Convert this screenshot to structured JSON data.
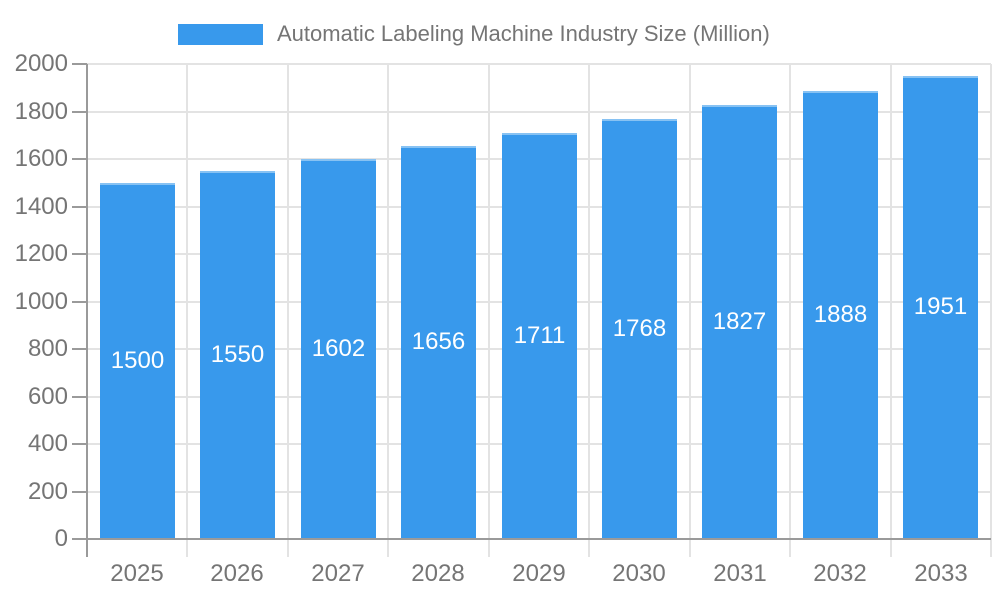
{
  "legend": {
    "label": "Automatic Labeling Machine Industry Size (Million)"
  },
  "chart_data": {
    "type": "bar",
    "title": "Automatic Labeling Machine Industry Size (Million)",
    "categories": [
      "2025",
      "2026",
      "2027",
      "2028",
      "2029",
      "2030",
      "2031",
      "2032",
      "2033"
    ],
    "values": [
      1500,
      1550,
      1602,
      1656,
      1711,
      1768,
      1827,
      1888,
      1951
    ],
    "value_labels_shown": true,
    "value_label_position": "inside-middle",
    "xlabel": "",
    "ylabel": "",
    "ylim": [
      0,
      2000
    ],
    "ytick_interval": 200,
    "yticks": [
      0,
      200,
      400,
      600,
      800,
      1000,
      1200,
      1400,
      1600,
      1800,
      2000
    ],
    "grid": true,
    "legend_position": "top",
    "colors": {
      "bar": "#3899EC",
      "grid": "#E3E3E3",
      "axis": "#9A9A9A",
      "text": "#757575",
      "value_label": "#FFFFFF",
      "background": "#FFFFFF"
    }
  }
}
